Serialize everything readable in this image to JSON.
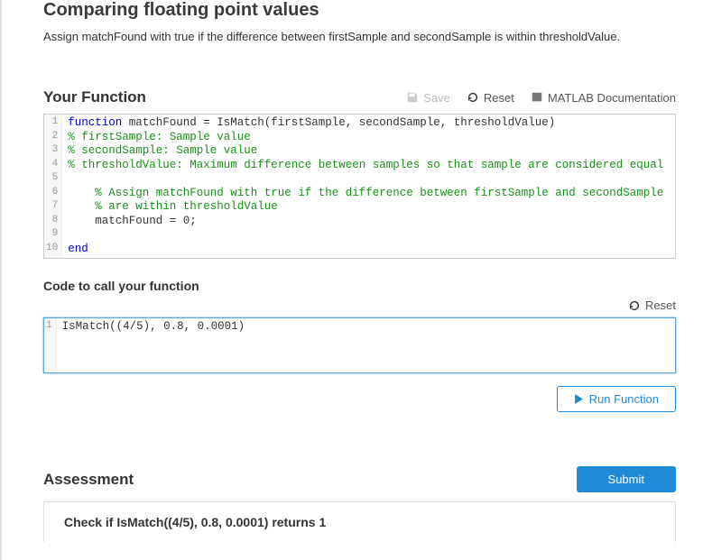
{
  "page": {
    "title": "Comparing floating point values",
    "description": "Assign matchFound with true if the difference between firstSample and secondSample is within thresholdValue."
  },
  "editor": {
    "section_title": "Your Function",
    "toolbar": {
      "save_label": "Save",
      "reset_label": "Reset",
      "doc_label": "MATLAB Documentation"
    },
    "lines": [
      {
        "n": "1",
        "segments": [
          {
            "t": "function",
            "c": "kw"
          },
          {
            "t": " matchFound = IsMatch(firstSample, secondSample, thresholdValue)",
            "c": "fn"
          }
        ]
      },
      {
        "n": "2",
        "segments": [
          {
            "t": "% firstSample: Sample value",
            "c": "cm"
          }
        ]
      },
      {
        "n": "3",
        "segments": [
          {
            "t": "% secondSample: Sample value",
            "c": "cm"
          }
        ]
      },
      {
        "n": "4",
        "segments": [
          {
            "t": "% thresholdValue: Maximum difference between samples so that sample are considered equal",
            "c": "cm"
          }
        ]
      },
      {
        "n": "5",
        "segments": [
          {
            "t": "",
            "c": "fn"
          }
        ]
      },
      {
        "n": "6",
        "segments": [
          {
            "t": "    % Assign matchFound with true if the difference between firstSample and secondSample",
            "c": "cm"
          }
        ]
      },
      {
        "n": "7",
        "segments": [
          {
            "t": "    % are within thresholdValue",
            "c": "cm"
          }
        ]
      },
      {
        "n": "8",
        "segments": [
          {
            "t": "    matchFound = 0;",
            "c": "fn"
          }
        ]
      },
      {
        "n": "9",
        "segments": [
          {
            "t": "",
            "c": "fn"
          }
        ]
      },
      {
        "n": "10",
        "segments": [
          {
            "t": "end",
            "c": "kw"
          }
        ]
      }
    ]
  },
  "caller": {
    "label": "Code to call your function",
    "reset_label": "Reset",
    "lines": [
      {
        "n": "1",
        "segments": [
          {
            "t": "IsMatch((4/5), 0.8, 0.0001)",
            "c": "fn"
          }
        ]
      }
    ]
  },
  "run_button": "Run Function",
  "assessment": {
    "title": "Assessment",
    "submit_label": "Submit",
    "check_text": "Check if IsMatch((4/5), 0.8, 0.0001) returns 1"
  },
  "colors": {
    "accent": "#1f8ad6",
    "keyword": "#0000cc",
    "comment": "#1a8f1a",
    "border": "#cccccc"
  }
}
